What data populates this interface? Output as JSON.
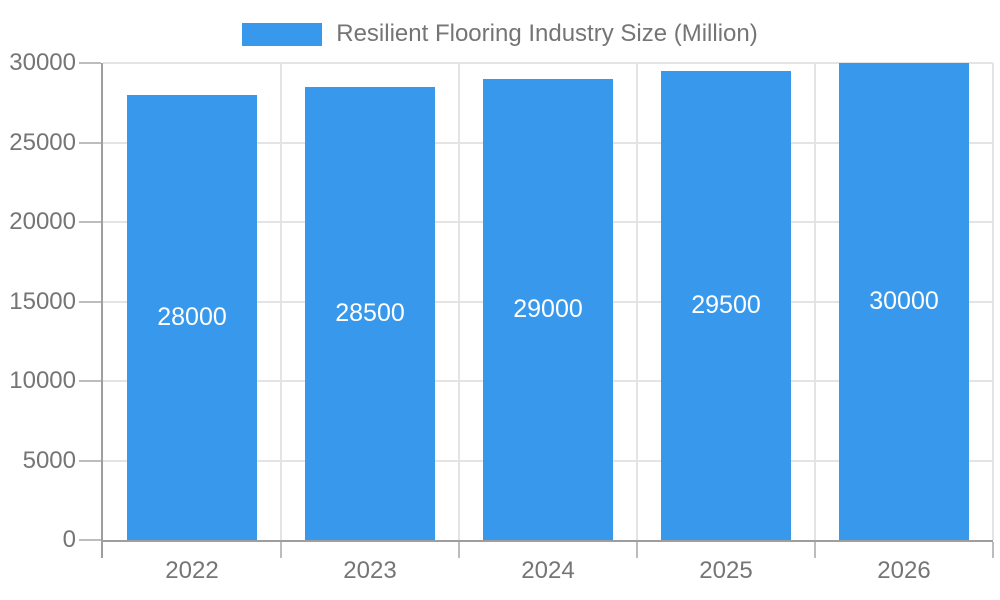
{
  "legend": {
    "label": "Resilient Flooring Industry Size (Million)"
  },
  "chart_data": {
    "type": "bar",
    "title": "",
    "xlabel": "",
    "ylabel": "",
    "categories": [
      "2022",
      "2023",
      "2024",
      "2025",
      "2026"
    ],
    "series": [
      {
        "name": "Resilient Flooring Industry Size (Million)",
        "values": [
          28000,
          28500,
          29000,
          29500,
          30000
        ]
      }
    ],
    "bar_labels": [
      "28000",
      "28500",
      "29000",
      "29500",
      "30000"
    ],
    "ylim": [
      0,
      30000
    ],
    "yticks": [
      0,
      5000,
      10000,
      15000,
      20000,
      25000,
      30000
    ],
    "ytick_labels": [
      "0",
      "5000",
      "10000",
      "15000",
      "20000",
      "25000",
      "30000"
    ],
    "grid": true,
    "legend_position": "top-center",
    "colors": {
      "bar": "#3898ec",
      "axis": "#9e9e9e",
      "gridline": "#e4e4e4",
      "tick": "#bdbdbd",
      "axis_text": "#757575",
      "bar_label_text": "#ffffff",
      "background": "#ffffff"
    }
  }
}
